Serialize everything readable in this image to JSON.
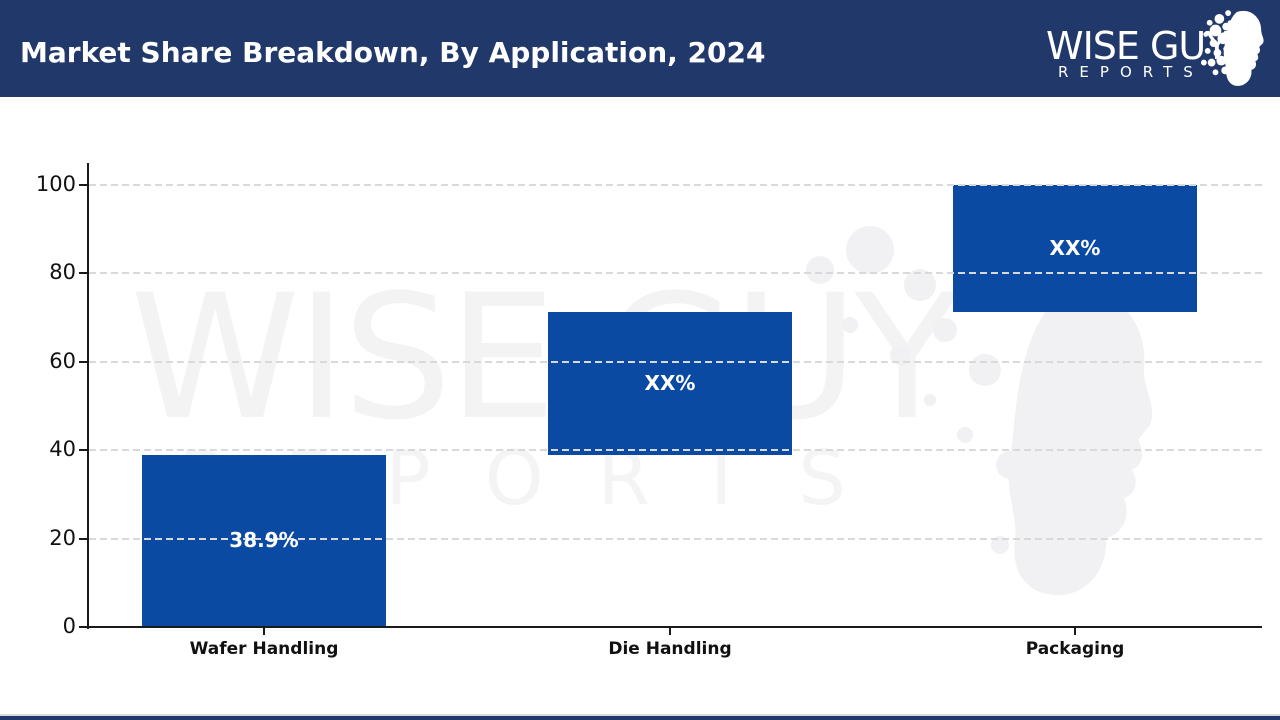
{
  "header": {
    "title": "Market Share Breakdown, By Application, 2024",
    "background_color": "#21386b",
    "logo": {
      "primary": "WISE GUY",
      "secondary": "REPORTS"
    }
  },
  "watermark": {
    "primary": "WISE GUY",
    "secondary": "REPORTS"
  },
  "chart_data": {
    "type": "bar",
    "subtype": "waterfall",
    "title": "Market Share Breakdown, By Application, 2024",
    "categories": [
      "Wafer Handling",
      "Die Handling",
      "Packaging"
    ],
    "segments": [
      {
        "category": "Wafer Handling",
        "start": 0,
        "end": 38.9,
        "label": "38.9%"
      },
      {
        "category": "Die Handling",
        "start": 38.9,
        "end": 71.2,
        "label": "XX%"
      },
      {
        "category": "Packaging",
        "start": 71.2,
        "end": 100,
        "label": "XX%"
      }
    ],
    "yticks": [
      0,
      20,
      40,
      60,
      80,
      100
    ],
    "ylim": [
      0,
      100
    ],
    "grid": "horizontal-dashed",
    "bar_color": "#0b4aa3",
    "bar_label_color": "#ffffff",
    "axis_color": "#1a1a1a"
  }
}
